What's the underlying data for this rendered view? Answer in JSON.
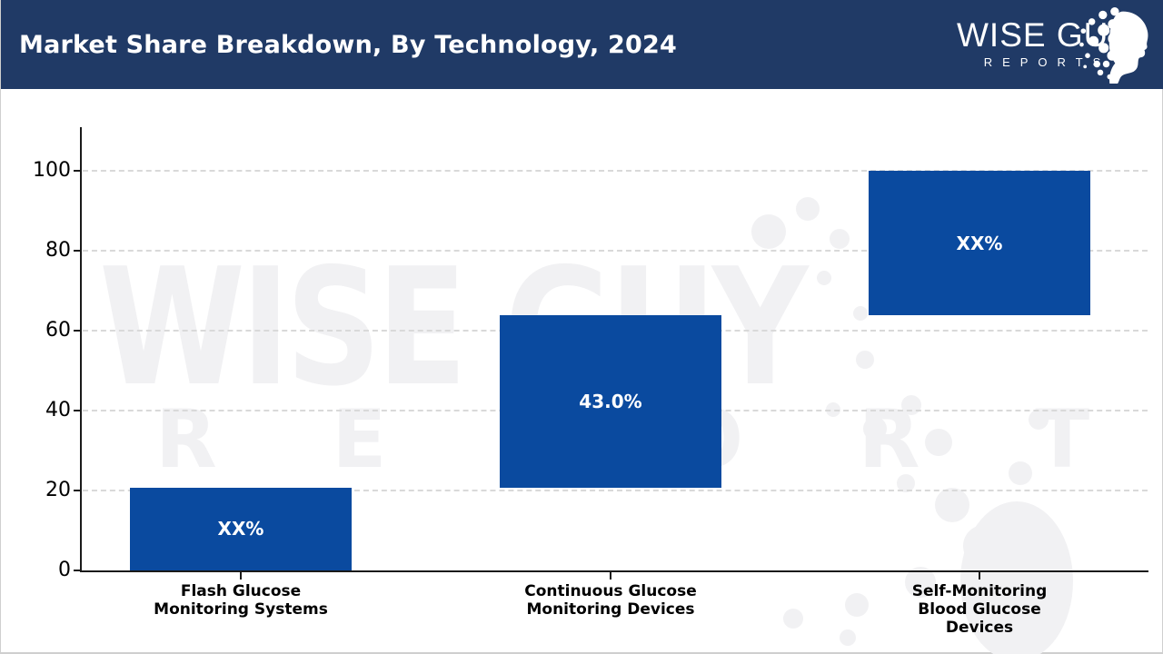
{
  "header": {
    "title": "Market Share Breakdown, By Technology, 2024",
    "logo": {
      "line1": "WISE GUY",
      "line2": "REPORTS"
    }
  },
  "watermark": {
    "line1": "WISE GUY",
    "line2": "R E P O R T S"
  },
  "chart_data": {
    "type": "bar",
    "subtype": "floating stacked percentage segments (waterfall style)",
    "title": "Market Share Breakdown, By Technology, 2024",
    "categories": [
      "Flash Glucose\nMonitoring Systems",
      "Continuous Glucose\nMonitoring Devices",
      "Self-Monitoring\nBlood Glucose\nDevices"
    ],
    "segments": [
      {
        "category": "Flash Glucose Monitoring Systems",
        "from": 0,
        "to": 20.7,
        "value_label": "XX%"
      },
      {
        "category": "Continuous Glucose Monitoring Devices",
        "from": 20.7,
        "to": 63.7,
        "value_label": "43.0%"
      },
      {
        "category": "Self-Monitoring Blood Glucose Devices",
        "from": 63.7,
        "to": 100,
        "value_label": "XX%"
      }
    ],
    "y_ticks": [
      0,
      20,
      40,
      60,
      80,
      100
    ],
    "ylim": [
      0,
      100
    ],
    "xlabel": "",
    "ylabel": "",
    "grid": "horizontal dashed",
    "legend": "none",
    "bar_color": "#0a4a9f",
    "header_color": "#203a66"
  }
}
